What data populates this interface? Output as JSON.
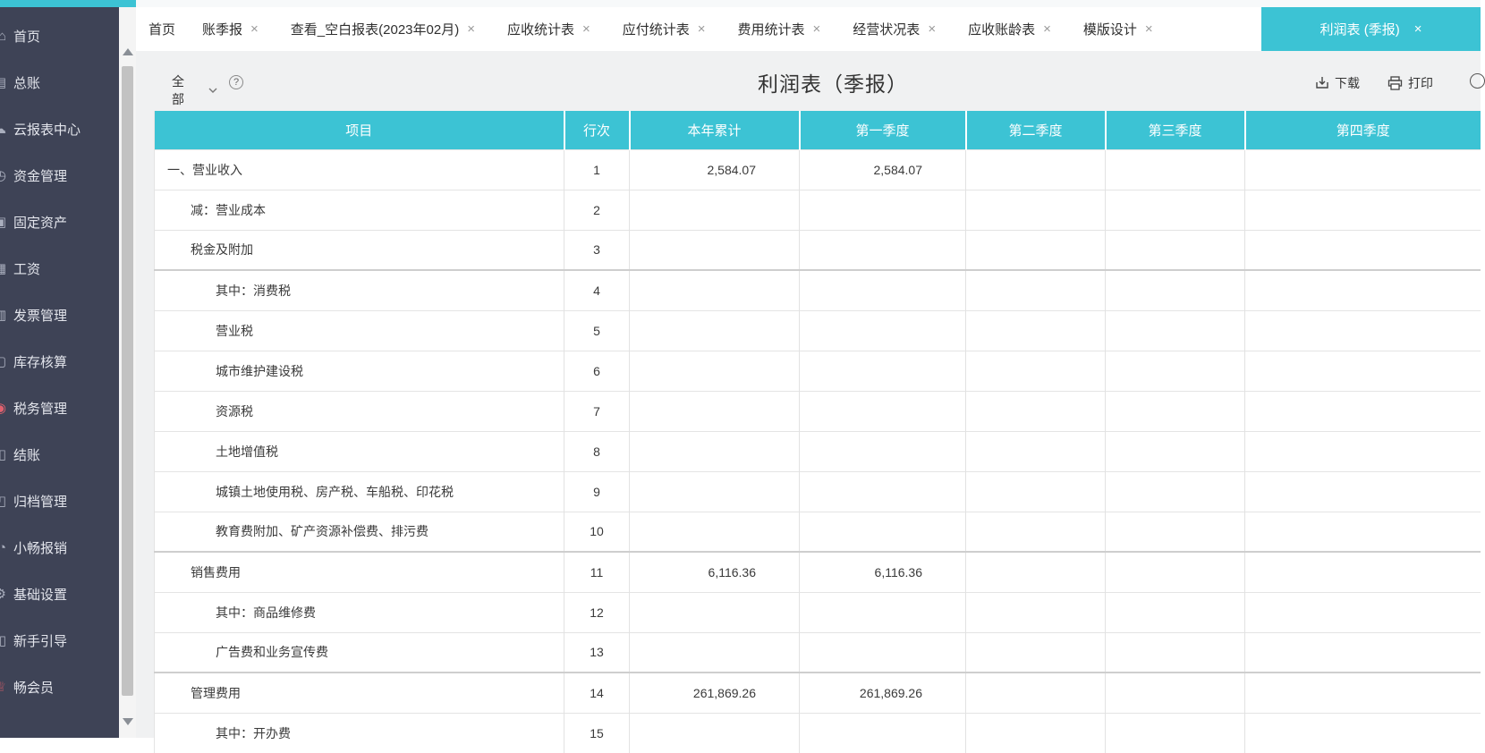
{
  "colors": {
    "accent_cyan": "#3cc3d4",
    "sidebar_bg": "#3e4356",
    "content_bg": "#f0f1f2"
  },
  "sidebar": {
    "items": [
      {
        "label": "首页",
        "icon": "home-icon",
        "glyph": "⌂",
        "color": "#a9aebd"
      },
      {
        "label": "总账",
        "icon": "ledger-icon",
        "glyph": "▤",
        "color": "#a9aebd"
      },
      {
        "label": "云报表中心",
        "icon": "cloud-report-icon",
        "glyph": "☁",
        "color": "#a9aebd"
      },
      {
        "label": "资金管理",
        "icon": "funds-icon",
        "glyph": "◷",
        "color": "#a9aebd"
      },
      {
        "label": "固定资产",
        "icon": "assets-icon",
        "glyph": "▣",
        "color": "#a9aebd"
      },
      {
        "label": "工资",
        "icon": "salary-icon",
        "glyph": "▦",
        "color": "#a9aebd"
      },
      {
        "label": "发票管理",
        "icon": "invoice-icon",
        "glyph": "▥",
        "color": "#a9aebd"
      },
      {
        "label": "库存核算",
        "icon": "inventory-icon",
        "glyph": "▢",
        "color": "#a9aebd"
      },
      {
        "label": "税务管理",
        "icon": "tax-icon",
        "glyph": "◉",
        "color": "#e0616e"
      },
      {
        "label": "结账",
        "icon": "closing-icon",
        "glyph": "◫",
        "color": "#a9aebd"
      },
      {
        "label": "归档管理",
        "icon": "archive-icon",
        "glyph": "◰",
        "color": "#a9aebd"
      },
      {
        "label": "小畅报销",
        "icon": "expense-icon",
        "glyph": "◔",
        "color": "#a9aebd"
      },
      {
        "label": "基础设置",
        "icon": "settings-icon",
        "glyph": "⚙",
        "color": "#a9aebd"
      },
      {
        "label": "新手引导",
        "icon": "guide-icon",
        "glyph": "▯",
        "color": "#a9aebd"
      },
      {
        "label": "畅会员",
        "icon": "member-icon",
        "glyph": "♕",
        "color": "#c05a66"
      }
    ]
  },
  "tabs": {
    "items": [
      {
        "label": "首页",
        "closable": false,
        "active": false,
        "clipped_prefix": ""
      },
      {
        "label": "季报",
        "closable": true,
        "active": false,
        "clipped_prefix": "账"
      },
      {
        "label": "查看_空白报表(2023年02月)",
        "closable": true,
        "active": false,
        "clipped_prefix": ""
      },
      {
        "label": "应收统计表",
        "closable": true,
        "active": false,
        "clipped_prefix": ""
      },
      {
        "label": "应付统计表",
        "closable": true,
        "active": false,
        "clipped_prefix": ""
      },
      {
        "label": "费用统计表",
        "closable": true,
        "active": false,
        "clipped_prefix": ""
      },
      {
        "label": "经营状况表",
        "closable": true,
        "active": false,
        "clipped_prefix": ""
      },
      {
        "label": "应收账龄表",
        "closable": true,
        "active": false,
        "clipped_prefix": ""
      },
      {
        "label": "模版设计",
        "closable": true,
        "active": false,
        "clipped_prefix": ""
      },
      {
        "label": "利润表 (季报)",
        "closable": true,
        "active": true,
        "clipped_prefix": ""
      }
    ],
    "close_glyph": "×"
  },
  "toolbar": {
    "filter_value": "全部",
    "help_glyph": "?",
    "title": "利润表（季报）",
    "download_label": "下载",
    "print_label": "打印"
  },
  "table": {
    "columns": [
      {
        "label": "项目"
      },
      {
        "label": "行次"
      },
      {
        "label": "本年累计"
      },
      {
        "label": "第一季度"
      },
      {
        "label": "第二季度"
      },
      {
        "label": "第三季度"
      },
      {
        "label": "第四季度"
      }
    ],
    "rows": [
      {
        "name": "一、营业收入",
        "indent": 1,
        "line": "1",
        "ytd": "2,584.07",
        "q1": "2,584.07",
        "q2": "",
        "q3": "",
        "q4": "",
        "section": false
      },
      {
        "name": "减：营业成本",
        "indent": 2,
        "line": "2",
        "ytd": "",
        "q1": "",
        "q2": "",
        "q3": "",
        "q4": "",
        "section": false
      },
      {
        "name": "税金及附加",
        "indent": 2,
        "line": "3",
        "ytd": "",
        "q1": "",
        "q2": "",
        "q3": "",
        "q4": "",
        "section": false
      },
      {
        "name": "其中：消费税",
        "indent": 3,
        "line": "4",
        "ytd": "",
        "q1": "",
        "q2": "",
        "q3": "",
        "q4": "",
        "section": true
      },
      {
        "name": "营业税",
        "indent": 3,
        "line": "5",
        "ytd": "",
        "q1": "",
        "q2": "",
        "q3": "",
        "q4": "",
        "section": false
      },
      {
        "name": "城市维护建设税",
        "indent": 3,
        "line": "6",
        "ytd": "",
        "q1": "",
        "q2": "",
        "q3": "",
        "q4": "",
        "section": false
      },
      {
        "name": "资源税",
        "indent": 3,
        "line": "7",
        "ytd": "",
        "q1": "",
        "q2": "",
        "q3": "",
        "q4": "",
        "section": false
      },
      {
        "name": "土地增值税",
        "indent": 3,
        "line": "8",
        "ytd": "",
        "q1": "",
        "q2": "",
        "q3": "",
        "q4": "",
        "section": false
      },
      {
        "name": "城镇土地使用税、房产税、车船税、印花税",
        "indent": 3,
        "line": "9",
        "ytd": "",
        "q1": "",
        "q2": "",
        "q3": "",
        "q4": "",
        "section": false
      },
      {
        "name": "教育费附加、矿产资源补偿费、排污费",
        "indent": 3,
        "line": "10",
        "ytd": "",
        "q1": "",
        "q2": "",
        "q3": "",
        "q4": "",
        "section": false
      },
      {
        "name": "销售费用",
        "indent": 2,
        "line": "11",
        "ytd": "6,116.36",
        "q1": "6,116.36",
        "q2": "",
        "q3": "",
        "q4": "",
        "section": true
      },
      {
        "name": "其中：商品维修费",
        "indent": 3,
        "line": "12",
        "ytd": "",
        "q1": "",
        "q2": "",
        "q3": "",
        "q4": "",
        "section": false
      },
      {
        "name": "广告费和业务宣传费",
        "indent": 3,
        "line": "13",
        "ytd": "",
        "q1": "",
        "q2": "",
        "q3": "",
        "q4": "",
        "section": false
      },
      {
        "name": "管理费用",
        "indent": 2,
        "line": "14",
        "ytd": "261,869.26",
        "q1": "261,869.26",
        "q2": "",
        "q3": "",
        "q4": "",
        "section": true
      },
      {
        "name": "其中：开办费",
        "indent": 3,
        "line": "15",
        "ytd": "",
        "q1": "",
        "q2": "",
        "q3": "",
        "q4": "",
        "section": false
      }
    ]
  }
}
